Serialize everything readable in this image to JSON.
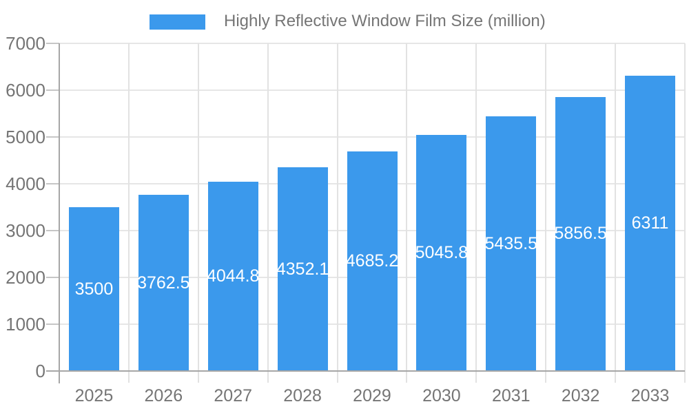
{
  "legend": {
    "label": "Highly Reflective Window Film Size (million)"
  },
  "chart_data": {
    "type": "bar",
    "title": "Highly Reflective Window Film Size (million)",
    "categories": [
      "2025",
      "2026",
      "2027",
      "2028",
      "2029",
      "2030",
      "2031",
      "2032",
      "2033"
    ],
    "values": [
      3500,
      3762.5,
      4044.8,
      4352.1,
      4685.2,
      5045.8,
      5435.5,
      5856.5,
      6311
    ],
    "series": [
      {
        "name": "Highly Reflective Window Film Size (million)",
        "values": [
          3500,
          3762.5,
          4044.8,
          4352.1,
          4685.2,
          5045.8,
          5435.5,
          5856.5,
          6311
        ]
      }
    ],
    "xlabel": "",
    "ylabel": "",
    "ylim": [
      0,
      7000
    ],
    "ytick_step": 1000,
    "ytick_labels": [
      "0",
      "1000",
      "2000",
      "3000",
      "4000",
      "5000",
      "6000",
      "7000"
    ],
    "grid": true,
    "legend_position": "top",
    "value_labels": "inside-center-white",
    "colors": {
      "bar": "#3B99EC",
      "value_text": "#ffffff",
      "axis_text": "#757575",
      "gridline": "#e6e6e6",
      "axis_line": "#a6a6a6",
      "background": "#ffffff"
    }
  }
}
